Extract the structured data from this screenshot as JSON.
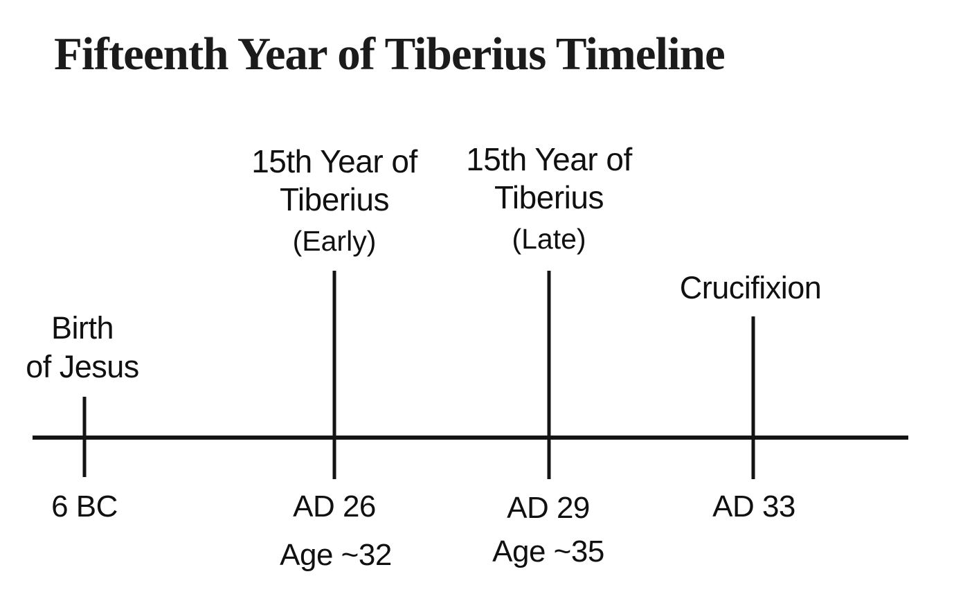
{
  "title": "Fifteenth Year of Tiberius Timeline",
  "colors": {
    "text": "#101010",
    "line": "#141414",
    "background": "#ffffff"
  },
  "events": [
    {
      "line1": "Birth",
      "line2": "of Jesus",
      "year": "6 BC"
    },
    {
      "line1": "15th Year of",
      "line2": "Tiberius",
      "qualifier": "(Early)",
      "year": "AD 26",
      "age": "Age ~32"
    },
    {
      "line1": "15th Year of",
      "line2": "Tiberius",
      "qualifier": "(Late)",
      "year": "AD 29",
      "age": "Age ~35"
    },
    {
      "line1": "Crucifixion",
      "year": "AD 33"
    }
  ]
}
